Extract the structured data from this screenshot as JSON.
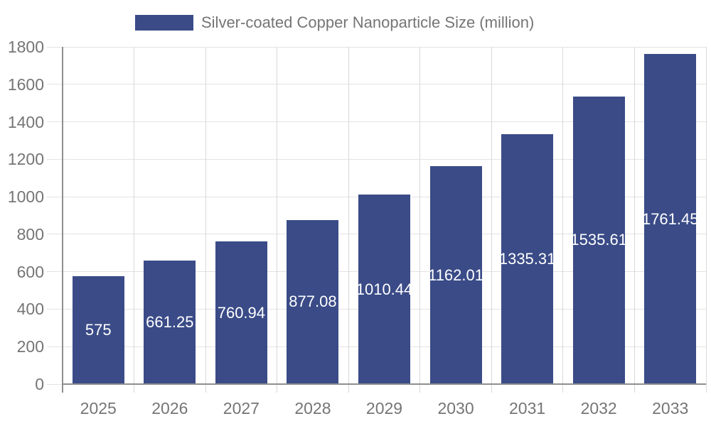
{
  "chart_data": {
    "type": "bar",
    "title": "Silver-coated Copper Nanoparticle Size (million)",
    "legend": {
      "label": "Silver-coated Copper Nanoparticle Size (million)",
      "position": "top"
    },
    "categories": [
      "2025",
      "2026",
      "2027",
      "2028",
      "2029",
      "2030",
      "2031",
      "2032",
      "2033"
    ],
    "series": [
      {
        "name": "Silver-coated Copper Nanoparticle Size (million)",
        "values": [
          575,
          661.25,
          760.94,
          877.08,
          1010.44,
          1162.01,
          1335.31,
          1535.61,
          1761.45
        ],
        "value_labels": [
          "575",
          "661.25",
          "760.94",
          "877.08",
          "1010.44",
          "1162.01",
          "1335.31",
          "1535.61",
          "1761.45"
        ]
      }
    ],
    "xlabel": "",
    "ylabel": "",
    "ylim": [
      0,
      1800
    ],
    "ytick_step": 200,
    "yticks": [
      "0",
      "200",
      "400",
      "600",
      "800",
      "1000",
      "1200",
      "1400",
      "1600",
      "1800"
    ],
    "grid": true,
    "value_labels_inside_bars": true,
    "colors": {
      "bar": "#3a4b87",
      "grid_horizontal": "#e3e3e3",
      "grid_vertical": "#d9d9d9",
      "axis": "#8f8f8f",
      "tick_text": "#757575",
      "legend_text": "#757575",
      "value_text": "#ffffff",
      "background": "#ffffff"
    }
  }
}
